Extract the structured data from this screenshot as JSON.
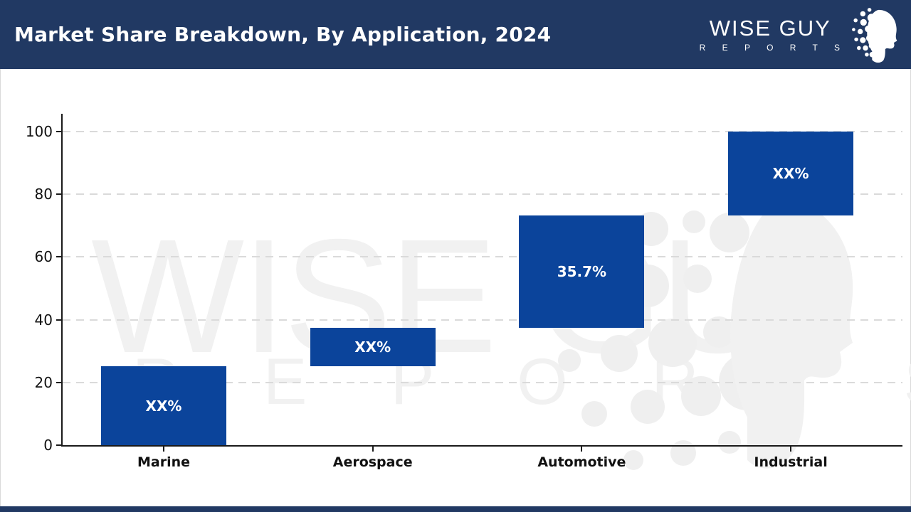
{
  "header": {
    "title": "Market Share Breakdown, By Application, 2024",
    "bg_color": "#213963"
  },
  "logo": {
    "line1": "WISE GUY",
    "line2": "R E P O R T S"
  },
  "watermark": {
    "line1": "WISE GU",
    "line2": "R E P O R T S"
  },
  "chart_data": {
    "type": "bar",
    "subtype": "waterfall",
    "title": "Market Share Breakdown, By Application, 2024",
    "categories": [
      "Marine",
      "Aerospace",
      "Automotive",
      "Industrial"
    ],
    "segments": [
      {
        "category": "Marine",
        "start": 0,
        "end": 25.1,
        "label": "XX%"
      },
      {
        "category": "Aerospace",
        "start": 25.1,
        "end": 37.5,
        "label": "XX%"
      },
      {
        "category": "Automotive",
        "start": 37.5,
        "end": 73.2,
        "label": "35.7%"
      },
      {
        "category": "Industrial",
        "start": 73.2,
        "end": 100,
        "label": "XX%"
      }
    ],
    "xlabel": "",
    "ylabel": "",
    "ylim": [
      0,
      105.7
    ],
    "yticks": [
      0,
      20,
      40,
      60,
      80,
      100
    ],
    "grid": "horizontal-dashed",
    "legend": "none",
    "bar_color": "#0b449b",
    "bar_label_color": "#ffffff",
    "axis_color": "#1a1a1a",
    "grid_color": "#dadada"
  }
}
